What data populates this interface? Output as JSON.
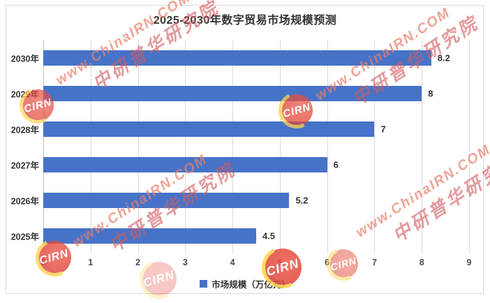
{
  "chart_data": {
    "type": "bar",
    "orientation": "horizontal",
    "title": "2025-2030年数字贸易市场规模预测",
    "categories": [
      "2030年",
      "2029年",
      "2028年",
      "2027年",
      "2026年",
      "2025年"
    ],
    "values": [
      8.2,
      8,
      7,
      6,
      5.2,
      4.5
    ],
    "data_labels": [
      "8.2",
      "8",
      "7",
      "6",
      "5.2",
      "4.5"
    ],
    "xlim": [
      0,
      9
    ],
    "x_ticks": [
      0,
      1,
      2,
      3,
      4,
      5,
      6,
      7,
      8,
      9
    ],
    "x_tick_labels": [
      "0",
      "1",
      "2",
      "3",
      "4",
      "5",
      "6",
      "7",
      "8",
      "9"
    ],
    "legend": [
      "市场规模（万亿元）"
    ],
    "legend_position": "bottom",
    "grid": "vertical",
    "bar_color": "#4673C8"
  },
  "watermark": {
    "line1": "www.ChinaIRN.COM",
    "line2": "中研普华研究院",
    "logo_text": "CIRN",
    "text_color_primary": "#E9806C",
    "text_color_secondary": "#D35B5F",
    "logo_red": "#E2483D",
    "logo_yellow": "#FFD34D"
  },
  "theme": {
    "bar_color": "#4673C8",
    "grid_color": "#D9D9D9",
    "axis_color": "#BFBFBF",
    "border_color": "#D9D9D9",
    "text_dark": "#333333",
    "tick_color": "#4A4A4A"
  }
}
